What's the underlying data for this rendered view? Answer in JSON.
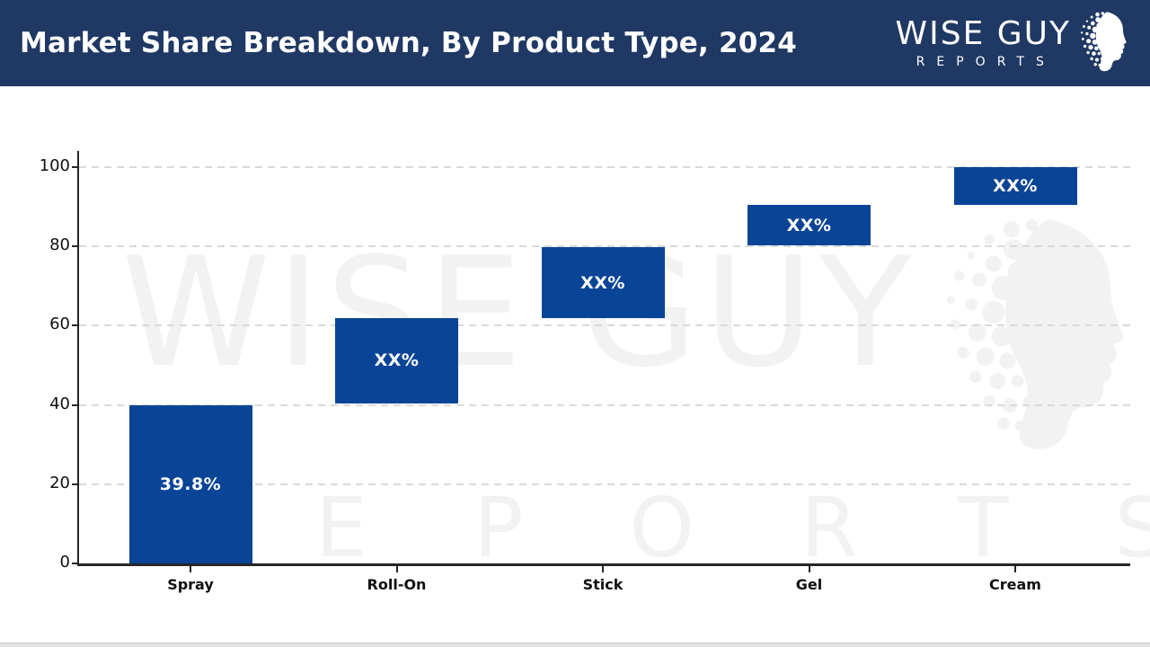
{
  "header": {
    "title": "Market Share Breakdown, By Product Type, 2024",
    "logo": {
      "line1": "WISE GUY",
      "line2": "REPORTS"
    }
  },
  "watermark": {
    "line1": "WISE GUY",
    "line2": "REPORTS"
  },
  "colors": {
    "header_bg": "#1F3864",
    "bar_fill": "#0A4496",
    "gridline": "#d9d9d9",
    "axis": "#262626",
    "bar_label": "#ffffff",
    "watermark": "#f2f2f2"
  },
  "chart_data": {
    "type": "bar",
    "subtype": "waterfall",
    "title": "Market Share Breakdown, By Product Type, 2024",
    "xlabel": "",
    "ylabel": "",
    "categories": [
      "Spray",
      "Roll-On",
      "Stick",
      "Gel",
      "Cream"
    ],
    "segments": [
      {
        "category": "Spray",
        "start": 0,
        "end": 39.8,
        "label": "39.8%"
      },
      {
        "category": "Roll-On",
        "start": 40.4,
        "end": 62.0,
        "label": "XX%"
      },
      {
        "category": "Stick",
        "start": 61.9,
        "end": 79.8,
        "label": "XX%"
      },
      {
        "category": "Gel",
        "start": 80.2,
        "end": 90.4,
        "label": "XX%"
      },
      {
        "category": "Cream",
        "start": 90.4,
        "end": 100.0,
        "label": "XX%"
      }
    ],
    "yticks": [
      0,
      20,
      40,
      60,
      80,
      100
    ],
    "ylim": [
      0,
      104
    ],
    "grid": "dashed-horizontal",
    "legend": "none"
  }
}
